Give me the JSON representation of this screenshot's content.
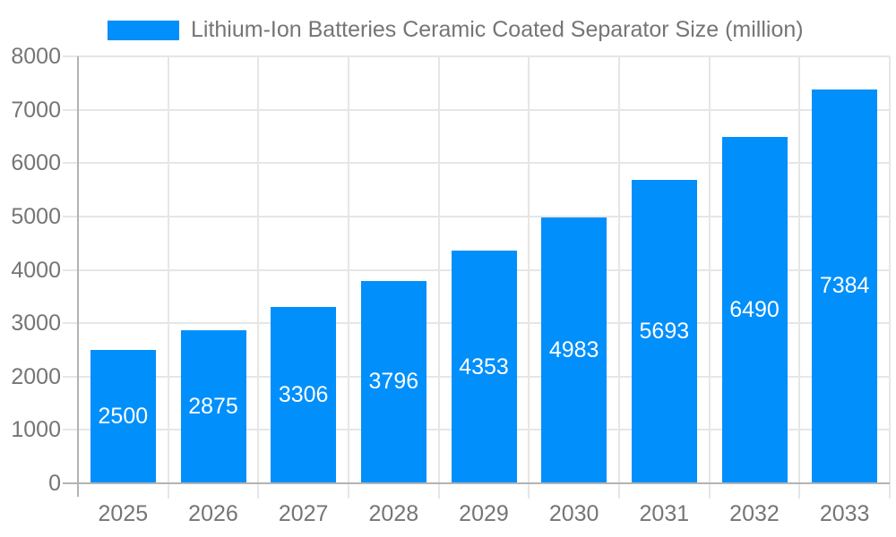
{
  "chart_data": {
    "type": "bar",
    "title": "Lithium-Ion Batteries Ceramic Coated Separator Size (million)",
    "legend": {
      "position": "top-left",
      "marker": "rectangle",
      "entries": [
        "Lithium-Ion Batteries Ceramic Coated Separator Size (million)"
      ]
    },
    "categories": [
      "2025",
      "2026",
      "2027",
      "2028",
      "2029",
      "2030",
      "2031",
      "2032",
      "2033"
    ],
    "values": [
      2500,
      2875,
      3306,
      3796,
      4353,
      4983,
      5693,
      6490,
      7384
    ],
    "series": [
      {
        "name": "Lithium-Ion Batteries Ceramic Coated Separator Size (million)",
        "values": [
          2500,
          2875,
          3306,
          3796,
          4353,
          4983,
          5693,
          6490,
          7384
        ]
      }
    ],
    "xlabel": "",
    "ylabel": "",
    "ylim": [
      0,
      8000
    ],
    "y_ticks": [
      0,
      1000,
      2000,
      3000,
      4000,
      5000,
      6000,
      7000,
      8000
    ],
    "grid": true,
    "value_labels": "inside-bar-centered",
    "colors": {
      "bar": "#008ffb",
      "bar_label_text": "#ffffff",
      "grid_line": "#e6e6e6",
      "axis_line": "#b3b3b3",
      "tick_label_text": "#757575",
      "legend_text": "#757575",
      "background": "#ffffff"
    }
  }
}
